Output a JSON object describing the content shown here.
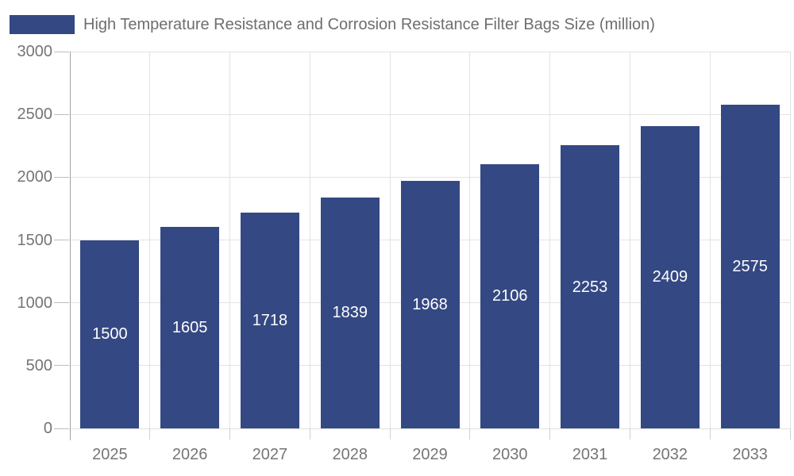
{
  "chart_data": {
    "type": "bar",
    "title": "High Temperature Resistance and Corrosion Resistance Filter Bags Size (million)",
    "categories": [
      "2025",
      "2026",
      "2027",
      "2028",
      "2029",
      "2030",
      "2031",
      "2032",
      "2033"
    ],
    "values": [
      1500,
      1605,
      1718,
      1839,
      1968,
      2106,
      2253,
      2409,
      2575
    ],
    "xlabel": "",
    "ylabel": "",
    "ylim": [
      0,
      3000
    ],
    "ytick_interval": 500,
    "ytick_labels": [
      "0",
      "500",
      "1000",
      "1500",
      "2000",
      "2500",
      "3000"
    ],
    "grid": true,
    "legend_position": "top-left",
    "value_labels_inside_bars": true
  },
  "legend": {
    "label": "High Temperature Resistance and Corrosion Resistance Filter Bags Size (million)"
  },
  "colors": {
    "bar": "#344883",
    "legend_swatch": "#344883",
    "value_label": "#ffffff",
    "title_text": "#6e6e6e",
    "axis_label": "#757575",
    "gridline": "#e2e2e2",
    "axis_line": "#a3a3a3",
    "y_tick": "#bdbdbd",
    "x_tick": "#d0d0d0",
    "background": "#ffffff"
  }
}
